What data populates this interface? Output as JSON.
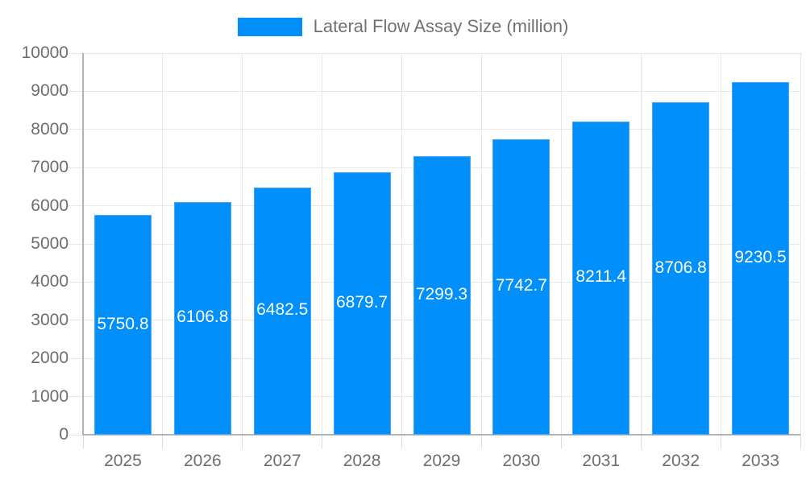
{
  "legend": {
    "label": "Lateral Flow Assay Size (million)"
  },
  "chart_data": {
    "type": "bar",
    "title": "Lateral Flow Assay Size (million)",
    "xlabel": "",
    "ylabel": "",
    "categories": [
      "2025",
      "2026",
      "2027",
      "2028",
      "2029",
      "2030",
      "2031",
      "2032",
      "2033"
    ],
    "series": [
      {
        "name": "Lateral Flow Assay Size (million)",
        "values": [
          5750.8,
          6106.8,
          6482.5,
          6879.7,
          7299.3,
          7742.7,
          8211.4,
          8706.8,
          9230.5
        ]
      }
    ],
    "data_labels": [
      "5750.8",
      "6106.8",
      "6482.5",
      "6879.7",
      "7299.3",
      "7742.7",
      "8211.4",
      "8706.8",
      "9230.5"
    ],
    "ylim": [
      0,
      10000
    ],
    "yticks": [
      0,
      1000,
      2000,
      3000,
      4000,
      5000,
      6000,
      7000,
      8000,
      9000,
      10000
    ],
    "grid": true,
    "legend_position": "top",
    "colors": {
      "bar": "#008FFB",
      "bar_label": "#ffffff",
      "axis_label": "#6b6e71",
      "legend_label": "#6e7175",
      "grid": "#e7e7e7",
      "axis_line": "#b3b3b3"
    }
  }
}
